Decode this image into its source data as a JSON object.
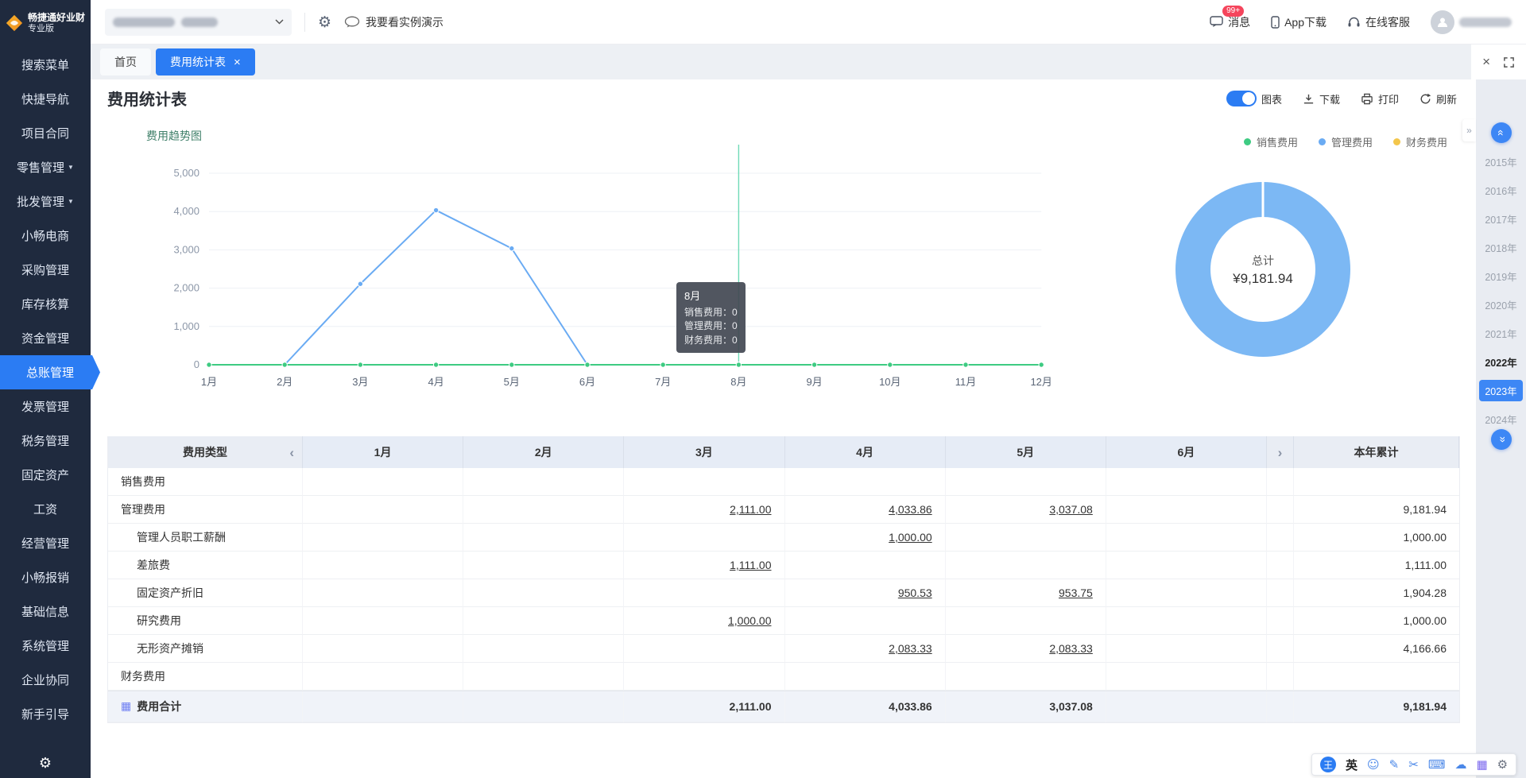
{
  "app": {
    "logo_title": "畅捷通好业财",
    "logo_subtitle": "专业版"
  },
  "colors": {
    "accent": "#2b7cf3",
    "green": "#3ecb82",
    "blue": "#6aabf3",
    "yellow": "#f3c64b",
    "donut": "#7cb8f4",
    "badge": "#f5455c",
    "tooltip_line": "#6fd9b6"
  },
  "icons": {
    "gear": "⚙",
    "caret_down": "▼",
    "chevron_left": "‹",
    "chevron_right": "›",
    "close": "×",
    "collapse": "»",
    "double_chevron": "«",
    "sum_grid": "▦"
  },
  "topbar": {
    "demo_link": "我要看实例演示",
    "messages_label": "消息",
    "messages_badge": "99+",
    "app_download_label": "App下载",
    "support_label": "在线客服"
  },
  "tabs": [
    {
      "label": "首页",
      "active": false,
      "closable": false
    },
    {
      "label": "费用统计表",
      "active": true,
      "closable": true
    }
  ],
  "page": {
    "title": "费用统计表",
    "toggle_label": "图表",
    "chart_toggle_on": true,
    "download_label": "下载",
    "print_label": "打印",
    "refresh_label": "刷新"
  },
  "sidebar": {
    "items": [
      {
        "label": "搜索菜单"
      },
      {
        "label": "快捷导航"
      },
      {
        "label": "项目合同"
      },
      {
        "label": "零售管理",
        "arrow": true
      },
      {
        "label": "批发管理",
        "arrow": true
      },
      {
        "label": "小畅电商"
      },
      {
        "label": "采购管理"
      },
      {
        "label": "库存核算"
      },
      {
        "label": "资金管理"
      },
      {
        "label": "总账管理",
        "active": true
      },
      {
        "label": "发票管理"
      },
      {
        "label": "税务管理"
      },
      {
        "label": "固定资产"
      },
      {
        "label": "工资"
      },
      {
        "label": "经营管理"
      },
      {
        "label": "小畅报销"
      },
      {
        "label": "基础信息"
      },
      {
        "label": "系统管理"
      },
      {
        "label": "企业协同"
      },
      {
        "label": "新手引导"
      }
    ]
  },
  "chart_data": [
    {
      "type": "line",
      "title": "费用趋势图",
      "categories": [
        "1月",
        "2月",
        "3月",
        "4月",
        "5月",
        "6月",
        "7月",
        "8月",
        "9月",
        "10月",
        "11月",
        "12月"
      ],
      "series": [
        {
          "name": "销售费用",
          "color": "#3ecb82",
          "values": [
            0,
            0,
            0,
            0,
            0,
            0,
            0,
            0,
            0,
            0,
            0,
            0
          ]
        },
        {
          "name": "管理费用",
          "color": "#6aabf3",
          "values": [
            0,
            0,
            2111.0,
            4033.86,
            3037.08,
            0,
            0,
            0,
            0,
            0,
            0,
            0
          ]
        },
        {
          "name": "财务费用",
          "color": "#f3c64b",
          "values": [
            0,
            0,
            0,
            0,
            0,
            0,
            0,
            0,
            0,
            0,
            0,
            0
          ]
        }
      ],
      "ylim": [
        0,
        5000
      ],
      "yticks": [
        "0",
        "1,000",
        "2,000",
        "3,000",
        "4,000",
        "5,000"
      ],
      "grid": true,
      "legend_position": "top-right",
      "tooltip": {
        "index": 7,
        "title": "8月",
        "lines": [
          "销售费用：0",
          "管理费用：0",
          "财务费用：0"
        ]
      }
    },
    {
      "type": "pie",
      "donut": true,
      "center_label": "总计",
      "center_value": "¥9,181.94",
      "total": 9181.94,
      "slices": [
        {
          "name": "管理费用",
          "value": 9181.94,
          "color": "#7cb8f4"
        }
      ]
    }
  ],
  "table": {
    "header": {
      "type_col": "费用类型",
      "months": [
        "1月",
        "2月",
        "3月",
        "4月",
        "5月",
        "6月"
      ],
      "total_col": "本年累计"
    },
    "rows": [
      {
        "label": "销售费用",
        "indent": false,
        "cells": [
          "",
          "",
          "",
          "",
          "",
          ""
        ],
        "total": ""
      },
      {
        "label": "管理费用",
        "indent": false,
        "cells": [
          "",
          "",
          "2,111.00",
          "4,033.86",
          "3,037.08",
          ""
        ],
        "total": "9,181.94"
      },
      {
        "label": "管理人员职工薪酬",
        "indent": true,
        "cells": [
          "",
          "",
          "",
          "1,000.00",
          "",
          ""
        ],
        "total": "1,000.00"
      },
      {
        "label": "差旅费",
        "indent": true,
        "cells": [
          "",
          "",
          "1,111.00",
          "",
          "",
          ""
        ],
        "total": "1,111.00"
      },
      {
        "label": "固定资产折旧",
        "indent": true,
        "cells": [
          "",
          "",
          "",
          "950.53",
          "953.75",
          ""
        ],
        "total": "1,904.28"
      },
      {
        "label": "研究费用",
        "indent": true,
        "cells": [
          "",
          "",
          "1,000.00",
          "",
          "",
          ""
        ],
        "total": "1,000.00"
      },
      {
        "label": "无形资产摊销",
        "indent": true,
        "cells": [
          "",
          "",
          "",
          "2,083.33",
          "2,083.33",
          ""
        ],
        "total": "4,166.66"
      },
      {
        "label": "财务费用",
        "indent": false,
        "cells": [
          "",
          "",
          "",
          "",
          "",
          ""
        ],
        "total": ""
      }
    ],
    "footer": {
      "label": "费用合计",
      "cells": [
        "",
        "",
        "2,111.00",
        "4,033.86",
        "3,037.08",
        ""
      ],
      "total": "9,181.94"
    }
  },
  "years": {
    "items": [
      "2015年",
      "2016年",
      "2017年",
      "2018年",
      "2019年",
      "2020年",
      "2021年",
      "2022年",
      "2023年",
      "2024年"
    ],
    "active_index": 8,
    "emphasis_index": 7
  },
  "ime": {
    "logo": "王",
    "lang": "英",
    "icons": [
      {
        "name": "emoji-icon",
        "glyph": "☺",
        "color": "#4a87e8"
      },
      {
        "name": "pen-icon",
        "glyph": "✎",
        "color": "#4a87e8"
      },
      {
        "name": "scissors-icon",
        "glyph": "✂",
        "color": "#4a87e8"
      },
      {
        "name": "keyboard-icon",
        "glyph": "⌨",
        "color": "#4a87e8"
      },
      {
        "name": "cloud-icon",
        "glyph": "☁",
        "color": "#4a87e8"
      },
      {
        "name": "grid-icon",
        "glyph": "▦",
        "color": "#7b68ee"
      },
      {
        "name": "gear-icon",
        "glyph": "⚙",
        "color": "#6b7280"
      }
    ]
  }
}
